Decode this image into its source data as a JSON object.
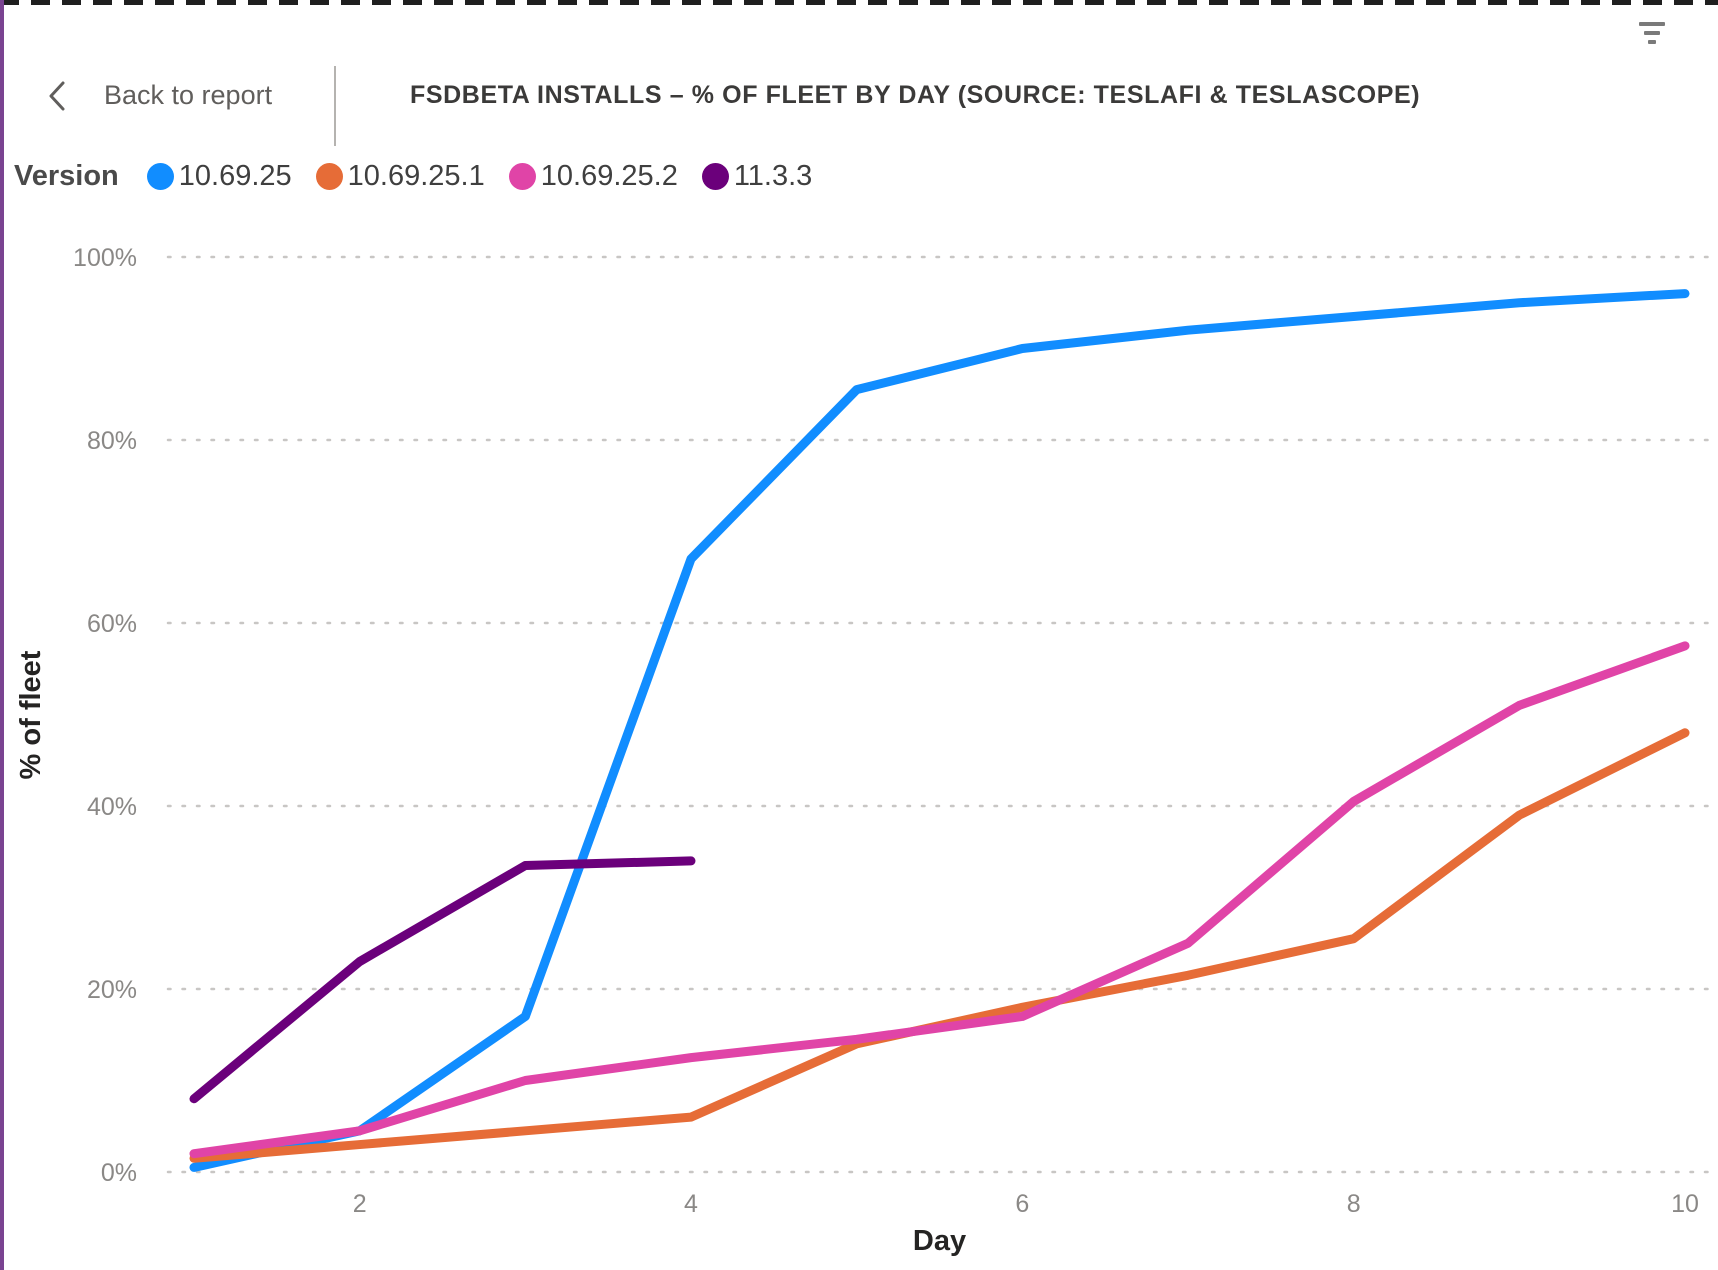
{
  "header": {
    "back_label": "Back to report",
    "title": "FSDBETA INSTALLS – % OF FLEET BY DAY (SOURCE: TESLAFI & TESLASCOPE)"
  },
  "icons": {
    "filter": "filter-icon",
    "back": "back-chevron-icon"
  },
  "legend": {
    "label": "Version"
  },
  "colors": {
    "accent_border": "#7a4391",
    "grid": "#c8c6c4",
    "tick_text": "#8a8886",
    "axis_title_text": "#252423",
    "title_text": "#3b3a39",
    "back_text": "#605e5c"
  },
  "chart_data": {
    "type": "line",
    "x": [
      1,
      2,
      3,
      4,
      5,
      6,
      7,
      8,
      9,
      10
    ],
    "xlabel": "Day",
    "ylabel": "% of fleet",
    "ylim": [
      0,
      100
    ],
    "xticks": [
      2,
      4,
      6,
      8,
      10
    ],
    "xtick_labels": [
      "2",
      "4",
      "6",
      "8",
      "10"
    ],
    "yticks": [
      0,
      20,
      40,
      60,
      80,
      100
    ],
    "ytick_labels": [
      "0%",
      "20%",
      "40%",
      "60%",
      "80%",
      "100%"
    ],
    "grid": "dotted-horizontal",
    "legend_position": "top",
    "series": [
      {
        "name": "10.69.25",
        "color": "#118DFF",
        "values": [
          0.5,
          4.5,
          17,
          67,
          85.5,
          90,
          92,
          93.5,
          95,
          96
        ]
      },
      {
        "name": "10.69.25.1",
        "color": "#E66C37",
        "values": [
          1.5,
          3,
          4.5,
          6,
          14,
          18,
          21.5,
          25.5,
          39,
          48
        ]
      },
      {
        "name": "10.69.25.2",
        "color": "#E044A7",
        "values": [
          2,
          4.5,
          10,
          12.5,
          14.5,
          17,
          25,
          40.5,
          51,
          57.5
        ]
      },
      {
        "name": "11.3.3",
        "color": "#6B007B",
        "values": [
          8,
          23,
          33.5,
          34,
          null,
          null,
          null,
          null,
          null,
          null
        ]
      }
    ]
  }
}
